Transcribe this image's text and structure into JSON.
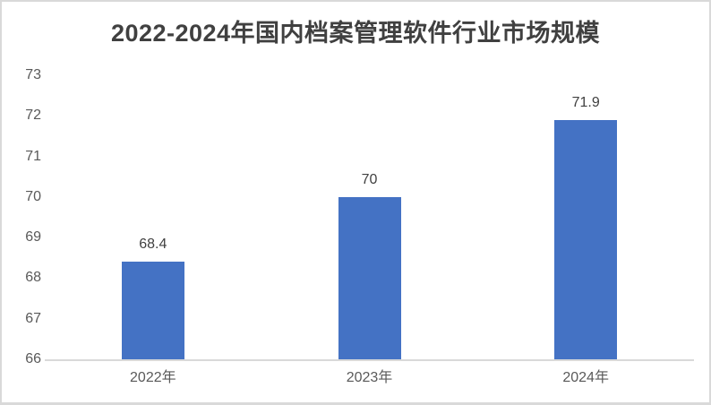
{
  "window": {
    "background": "#ffffff",
    "border_color": "#d9d9d9"
  },
  "chart_data": {
    "type": "bar",
    "title": "2022-2024年国内档案管理软件行业市场规模",
    "categories": [
      "2022年",
      "2023年",
      "2024年"
    ],
    "values": [
      68.4,
      70,
      71.9
    ],
    "data_labels": [
      "68.4",
      "70",
      "71.9"
    ],
    "xlabel": "",
    "ylabel": "",
    "ylim": [
      66,
      73
    ],
    "ytick_step": 1,
    "ytick_labels": [
      "66",
      "67",
      "68",
      "69",
      "70",
      "71",
      "72",
      "73"
    ],
    "grid": false,
    "legend_position": "none",
    "bar_color": "#4472c4",
    "axis_line_color": "#d9d9d9",
    "tick_label_color": "#595959",
    "data_label_color": "#404040",
    "title_color": "#404040"
  }
}
